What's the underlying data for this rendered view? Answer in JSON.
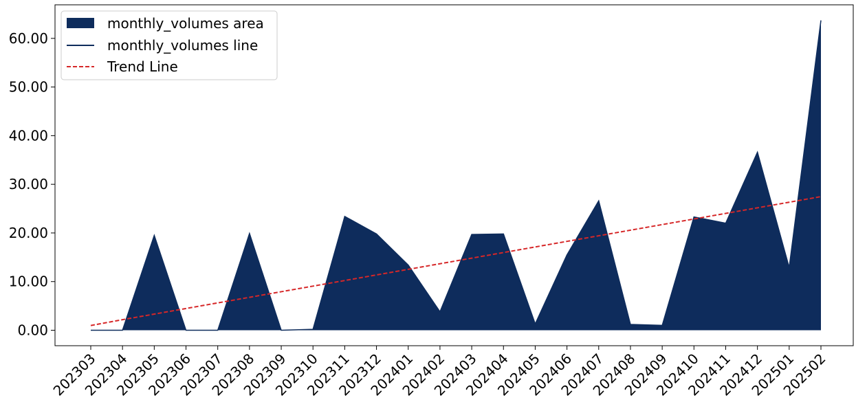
{
  "chart_data": {
    "type": "area",
    "categories": [
      "202303",
      "202304",
      "202305",
      "202306",
      "202307",
      "202308",
      "202309",
      "202310",
      "202311",
      "202312",
      "202401",
      "202402",
      "202403",
      "202404",
      "202405",
      "202406",
      "202407",
      "202408",
      "202409",
      "202410",
      "202411",
      "202412",
      "202501",
      "202502"
    ],
    "series": [
      {
        "name": "monthly_volumes area",
        "style": "area",
        "color": "#0e2c5c",
        "values": [
          0.0,
          0.0,
          19.5,
          0.0,
          0.0,
          19.9,
          0.0,
          0.2,
          23.4,
          19.8,
          13.4,
          3.8,
          19.7,
          19.8,
          1.3,
          15.5,
          26.6,
          1.2,
          1.0,
          23.3,
          22.0,
          36.6,
          12.9,
          63.7
        ]
      },
      {
        "name": "monthly_volumes line",
        "style": "line",
        "color": "#0e2c5c",
        "values": [
          0.0,
          0.0,
          19.5,
          0.0,
          0.0,
          19.9,
          0.0,
          0.2,
          23.4,
          19.8,
          13.4,
          3.8,
          19.7,
          19.8,
          1.3,
          15.5,
          26.6,
          1.2,
          1.0,
          23.3,
          22.0,
          36.6,
          12.9,
          63.7
        ]
      },
      {
        "name": "Trend Line",
        "style": "dashed",
        "color": "#d62728",
        "values": [
          0.97,
          2.17,
          3.32,
          4.47,
          5.62,
          6.77,
          7.92,
          9.07,
          10.22,
          11.37,
          12.52,
          13.67,
          14.82,
          15.97,
          17.12,
          18.27,
          19.42,
          20.57,
          21.72,
          22.87,
          24.02,
          25.17,
          26.32,
          27.47
        ]
      }
    ],
    "yticks": [
      "0.00",
      "10.00",
      "20.00",
      "30.00",
      "40.00",
      "50.00",
      "60.00"
    ],
    "ylim": [
      -3.18,
      66.9
    ],
    "legend": "top-left",
    "grid": false
  }
}
